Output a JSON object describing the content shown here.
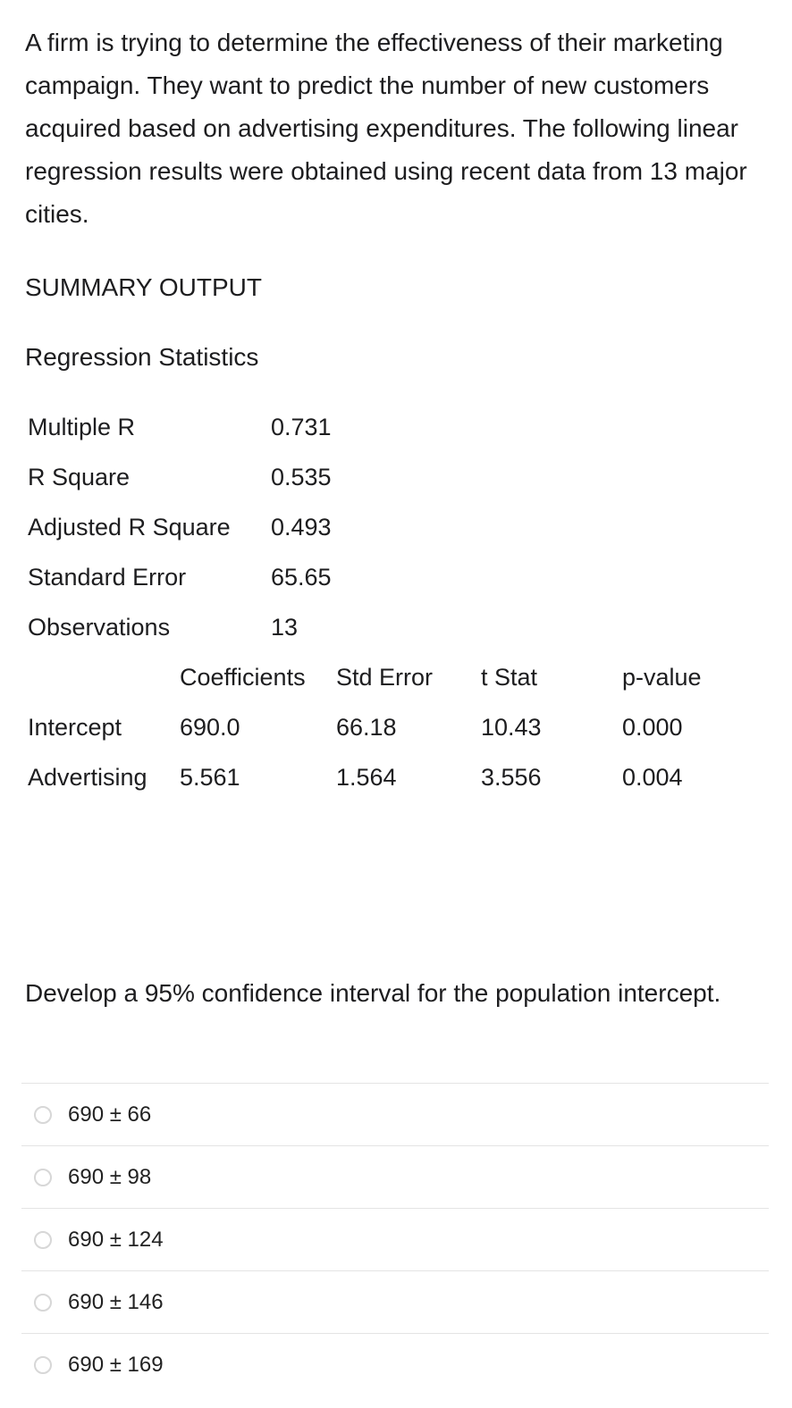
{
  "question": {
    "intro": "A firm is trying to determine the effectiveness of their marketing campaign. They want to predict the number of new customers acquired based on advertising expenditures. The following linear regression results were obtained using recent data from 13 major cities.",
    "summary_title": "SUMMARY OUTPUT",
    "stats_title": "Regression Statistics",
    "stats": [
      {
        "label": "Multiple R",
        "value": "0.731"
      },
      {
        "label": "R Square",
        "value": "0.535"
      },
      {
        "label": "Adjusted R Square",
        "value": "0.493"
      },
      {
        "label": "Standard Error",
        "value": "65.65"
      },
      {
        "label": "Observations",
        "value": "13"
      }
    ],
    "coef_table": {
      "headers": {
        "coefficients": "Coefficients",
        "std_error": "Std Error",
        "t_stat": "t Stat",
        "p_value": "p-value"
      },
      "rows": [
        {
          "name": "Intercept",
          "coefficients": "690.0",
          "std_error": "66.18",
          "t_stat": "10.43",
          "p_value": "0.000"
        },
        {
          "name": "Advertising",
          "coefficients": "5.561",
          "std_error": "1.564",
          "t_stat": "3.556",
          "p_value": "0.004"
        }
      ]
    },
    "prompt": "Develop a 95% confidence interval for the population intercept.",
    "options": [
      "690 ± 66",
      "690 ± 98",
      "690 ± 124",
      "690 ± 146",
      "690 ± 169"
    ]
  }
}
